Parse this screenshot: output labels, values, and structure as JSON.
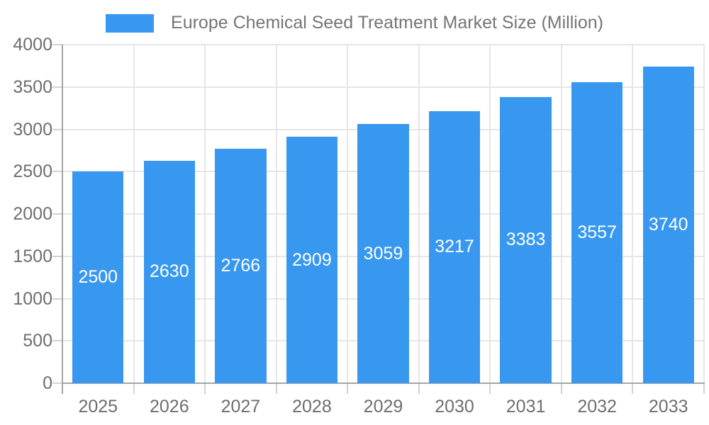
{
  "chart_data": {
    "type": "bar",
    "title": "Europe Chemical Seed Treatment Market Size (Million)",
    "categories": [
      "2025",
      "2026",
      "2027",
      "2028",
      "2029",
      "2030",
      "2031",
      "2032",
      "2033"
    ],
    "values": [
      2500,
      2630,
      2766,
      2909,
      3059,
      3217,
      3383,
      3557,
      3740
    ],
    "xlabel": "",
    "ylabel": "",
    "ylim": [
      0,
      4000
    ],
    "yticks": [
      0,
      500,
      1000,
      1500,
      2000,
      2500,
      3000,
      3500,
      4000
    ],
    "grid": true,
    "legend_position": "top-center",
    "bar_value_labels": "inside-middle",
    "colors": {
      "bar": "#3898F0",
      "bar_label": "#FFFFFF",
      "gridline": "#E6E6E6",
      "axis_line": "#A5A5A5",
      "tick_mark": "#D2D2D2",
      "tick_label": "#6E6E6E",
      "legend_text": "#757575",
      "background": "#FFFFFF"
    }
  }
}
